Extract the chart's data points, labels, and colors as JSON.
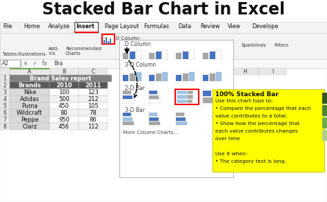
{
  "title": "Stacked Bar Chart in Excel",
  "title_fontsize": 18,
  "title_color": "#111111",
  "bg_color": "#ffffff",
  "ribbon_bg": "#f3f3f3",
  "menu_items": [
    "File",
    "Home",
    "Analyze",
    "Insert",
    "Page Layout",
    "Formulas",
    "Data",
    "Review",
    "View",
    "Develope"
  ],
  "cell_ref": "A2",
  "formula_bar_text": "Bra",
  "table_title": "Brand Sales report",
  "col_headers": [
    "Brands",
    "2010",
    "2011"
  ],
  "rows": [
    [
      "Nike",
      "100",
      "123"
    ],
    [
      "Adidas",
      "500",
      "212"
    ],
    [
      "Puma",
      "450",
      "105"
    ],
    [
      "Wildcraft",
      "80",
      "78"
    ],
    [
      "Peppe",
      "950",
      "86"
    ],
    [
      "Clarz",
      "456",
      "112"
    ]
  ],
  "section_2d_bar": "2-D Bar",
  "section_3d_col": "3-D Column",
  "section_3d_bar": "3-D Bar",
  "more_charts": "More Column Charts...",
  "tooltip_bg": "#ffff00",
  "tooltip_title": "100% Stacked Bar",
  "tooltip_lines": [
    "Use this chart type to:",
    "• Compare the percentage that each",
    "value contributes to a total.",
    "• Show how the percentage that",
    "each value contributes changes",
    "over time",
    "",
    "Use it when:",
    "• The category text is long."
  ],
  "blue": "#4472c4",
  "gray": "#a6a6a6",
  "light_blue": "#9dc3e6",
  "white": "#ffffff",
  "red": "#ff0000",
  "dark": "#333333",
  "panel_bg": "#ffffff",
  "panel_border": "#cccccc",
  "ribbon_border": "#c8c8c8",
  "header_dark": "#595959",
  "header_light": "#7f7f7f",
  "cell_alt": "#f2f2f2",
  "col_a_bg": "#d9d9d9",
  "col_header_bg": "#d9d9d9",
  "row_num_bg": "#e8e8e8",
  "sheet_bg": "#ffffff",
  "formula_bg": "#f8f8f8",
  "green1": "#375623",
  "green2": "#538135",
  "green3": "#70ad47",
  "green4": "#a9d18e"
}
